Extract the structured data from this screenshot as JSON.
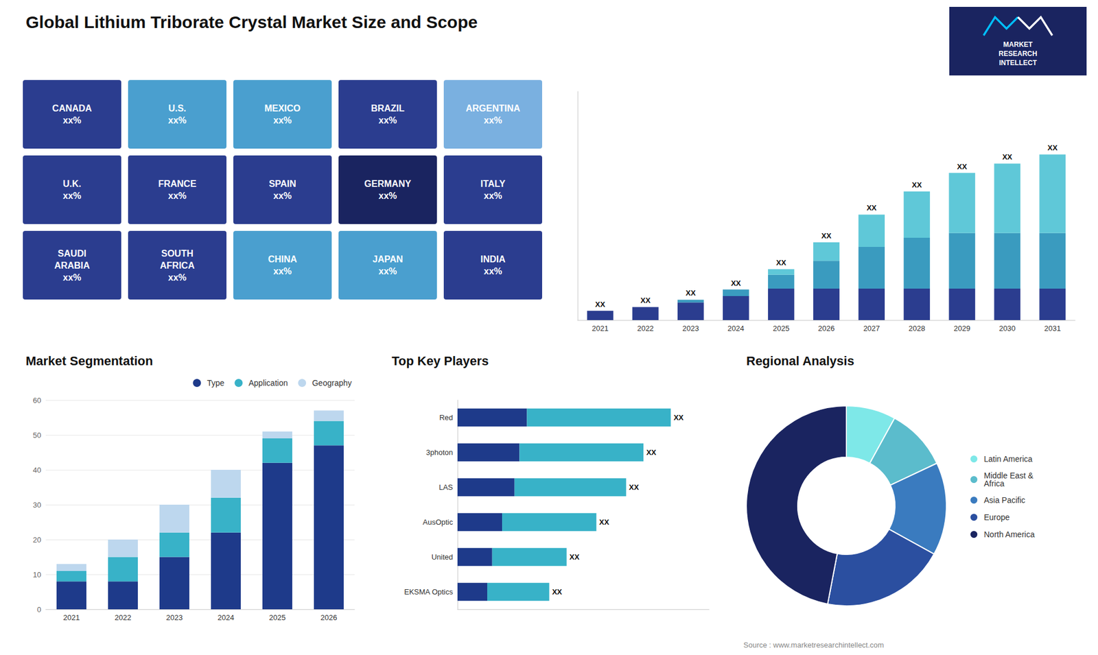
{
  "title": "Global Lithium Triborate Crystal Market Size and Scope",
  "source": "Source : www.marketresearchintellect.com",
  "logo": {
    "text": "MARKET\nRESEARCH\nINTELLECT",
    "color": "#1a2460"
  },
  "chart_data": [
    {
      "type": "map",
      "regions": [
        {
          "name": "CANADA",
          "label": "xx%",
          "color": "#2b3d8f"
        },
        {
          "name": "U.S.",
          "label": "xx%",
          "color": "#4a9fcf"
        },
        {
          "name": "MEXICO",
          "label": "xx%",
          "color": "#4a9fcf"
        },
        {
          "name": "BRAZIL",
          "label": "xx%",
          "color": "#2b3d8f"
        },
        {
          "name": "ARGENTINA",
          "label": "xx%",
          "color": "#7ab0e0"
        },
        {
          "name": "U.K.",
          "label": "xx%",
          "color": "#2b3d8f"
        },
        {
          "name": "FRANCE",
          "label": "xx%",
          "color": "#2b3d8f"
        },
        {
          "name": "SPAIN",
          "label": "xx%",
          "color": "#2b3d8f"
        },
        {
          "name": "GERMANY",
          "label": "xx%",
          "color": "#1a2460"
        },
        {
          "name": "ITALY",
          "label": "xx%",
          "color": "#2b3d8f"
        },
        {
          "name": "SAUDI\nARABIA",
          "label": "xx%",
          "color": "#2b3d8f"
        },
        {
          "name": "SOUTH\nAFRICA",
          "label": "xx%",
          "color": "#2b3d8f"
        },
        {
          "name": "CHINA",
          "label": "xx%",
          "color": "#4a9fcf"
        },
        {
          "name": "JAPAN",
          "label": "xx%",
          "color": "#4a9fcf"
        },
        {
          "name": "INDIA",
          "label": "xx%",
          "color": "#2b3d8f"
        }
      ]
    },
    {
      "type": "bar",
      "stacked": true,
      "categories": [
        "2021",
        "2022",
        "2023",
        "2024",
        "2025",
        "2026",
        "2027",
        "2028",
        "2029",
        "2030",
        "2031"
      ],
      "series": [
        {
          "color": "#2b3d8f",
          "values": [
            1.0,
            1.4,
            1.9,
            2.6,
            3.4,
            3.4,
            3.4,
            3.4,
            3.4,
            3.4,
            3.4
          ]
        },
        {
          "color": "#3a9bbf",
          "values": [
            0.0,
            0.0,
            0.3,
            0.7,
            1.5,
            3.0,
            4.5,
            5.5,
            6.0,
            6.0,
            6.0
          ]
        },
        {
          "color": "#5fc8d8",
          "values": [
            0.0,
            0.0,
            0.0,
            0.0,
            0.6,
            2.0,
            3.5,
            5.0,
            6.5,
            7.5,
            8.5
          ]
        }
      ],
      "total_labels": [
        "XX",
        "XX",
        "XX",
        "XX",
        "XX",
        "XX",
        "XX",
        "XX",
        "XX",
        "XX",
        "XX"
      ],
      "ylim": [
        0,
        24.702
      ],
      "tick_labels": "x",
      "grid": false
    },
    {
      "type": "bar",
      "title": "Market Segmentation",
      "stacked": true,
      "categories": [
        "2021",
        "2022",
        "2023",
        "2024",
        "2025",
        "2026"
      ],
      "series": [
        {
          "name": "Type",
          "color": "#1e3a8a",
          "values": [
            8,
            8,
            15,
            22,
            42,
            47
          ]
        },
        {
          "name": "Application",
          "color": "#38b2c8",
          "values": [
            3,
            7,
            7,
            10,
            7,
            7
          ]
        },
        {
          "name": "Geography",
          "color": "#bdd7ee",
          "values": [
            2,
            5,
            8,
            8,
            2,
            3
          ]
        }
      ],
      "ylim": [
        0,
        60
      ],
      "yticks": [
        0,
        10,
        20,
        30,
        40,
        50,
        60
      ],
      "grid": true,
      "legend": "upper right"
    },
    {
      "type": "bar",
      "title": "Top Key Players",
      "orientation": "horizontal",
      "stacked": true,
      "categories": [
        "Red",
        "3photon",
        "LAS",
        "AusOptic",
        "United",
        "EKSMA Optics"
      ],
      "series": [
        {
          "color": "#1e3a8a",
          "values": [
            28,
            25,
            23,
            18,
            14,
            12
          ]
        },
        {
          "color": "#38b2c8",
          "values": [
            58,
            50,
            45,
            38,
            30,
            25
          ]
        }
      ],
      "total_labels": [
        "XX",
        "XX",
        "XX",
        "XX",
        "XX",
        "XX"
      ],
      "xlim": [
        0,
        101.48
      ],
      "tick_labels": "y",
      "grid": false
    },
    {
      "type": "pie",
      "title": "Regional Analysis",
      "categories": [
        "Latin America",
        "Middle East &\nAfrica",
        "Asia Pacific",
        "Europe",
        "North America"
      ],
      "values": [
        8,
        10,
        15,
        20,
        47
      ],
      "colors": [
        "#7ee8e8",
        "#5bbccc",
        "#3a7bbf",
        "#2b4fa0",
        "#1a2460"
      ],
      "legend": "right"
    }
  ]
}
